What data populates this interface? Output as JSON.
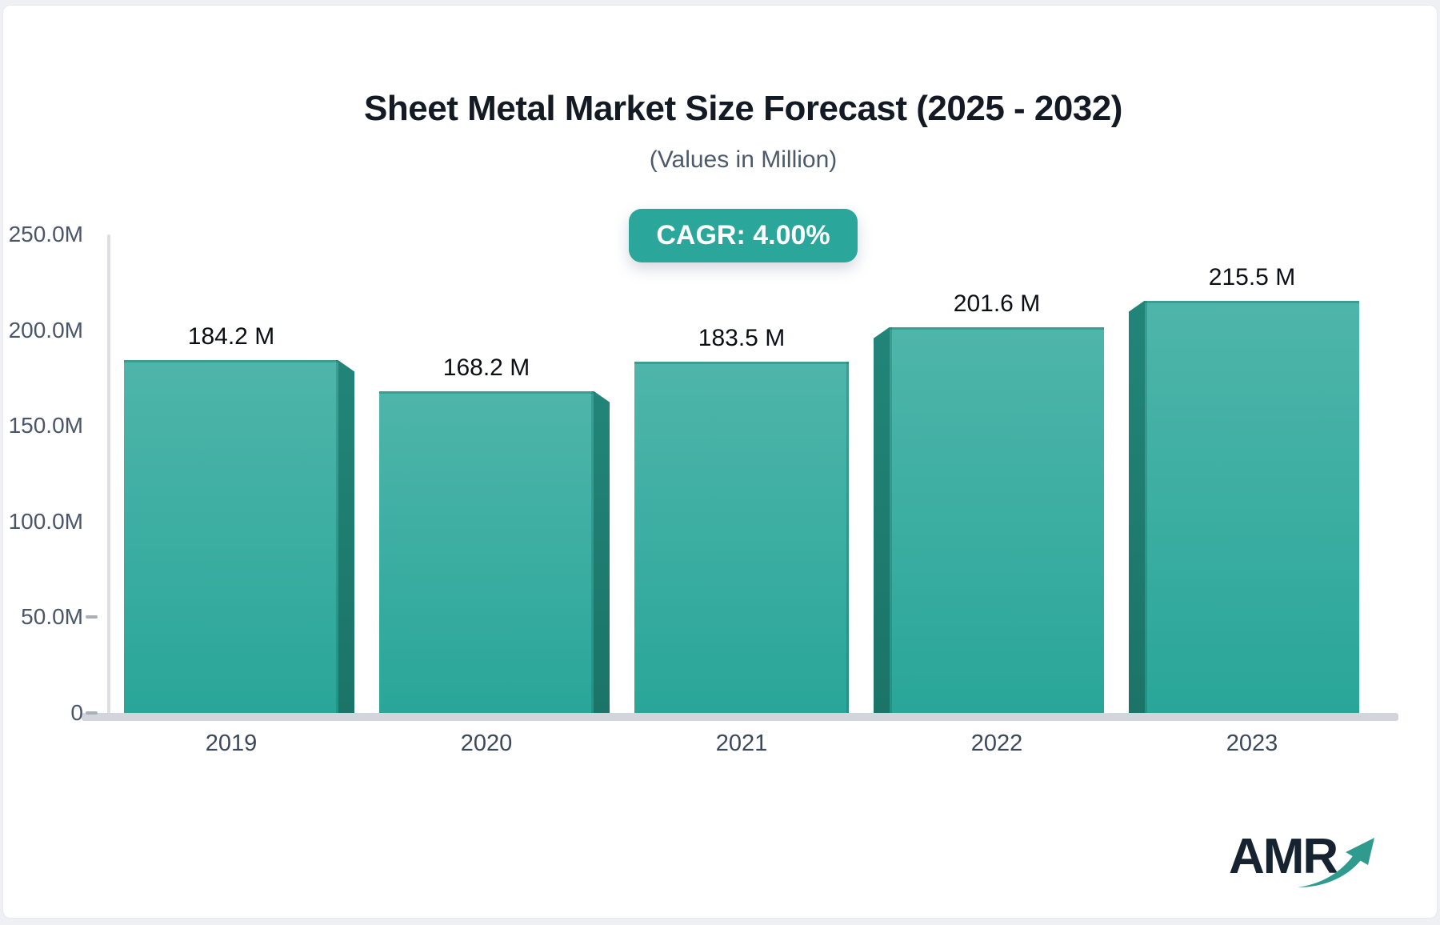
{
  "chart_data": {
    "type": "bar",
    "title": "Sheet Metal Market Size Forecast (2025 - 2032)",
    "subtitle": "(Values in Million)",
    "cagr_badge": "CAGR: 4.00%",
    "categories": [
      "2019",
      "2020",
      "2021",
      "2022",
      "2023"
    ],
    "values": [
      184.2,
      168.2,
      183.5,
      201.6,
      215.5
    ],
    "value_labels": [
      "184.2 M",
      "168.2 M",
      "183.5 M",
      "201.6 M",
      "215.5 M"
    ],
    "y_axis": {
      "tick_labels": [
        "250.0M",
        "200.0M",
        "150.0M",
        "100.0M",
        "50.0M",
        "0"
      ],
      "min": 0,
      "max": 250
    },
    "xlabel": "",
    "ylabel": "",
    "grid": false,
    "legend": false,
    "colors": {
      "bar_top": "#4fb5aa",
      "bar_bottom": "#29a699",
      "bar_edge": "rgba(17,104,94,0.30)",
      "bar_side_top": "#228579",
      "bar_side_bottom": "#1b7467",
      "badge_bg": "#2aa79a",
      "badge_text": "#ffffff"
    }
  },
  "logo": {
    "text": "AMR",
    "text_color": "#152330",
    "arrow_color": "#2f9a8e"
  }
}
